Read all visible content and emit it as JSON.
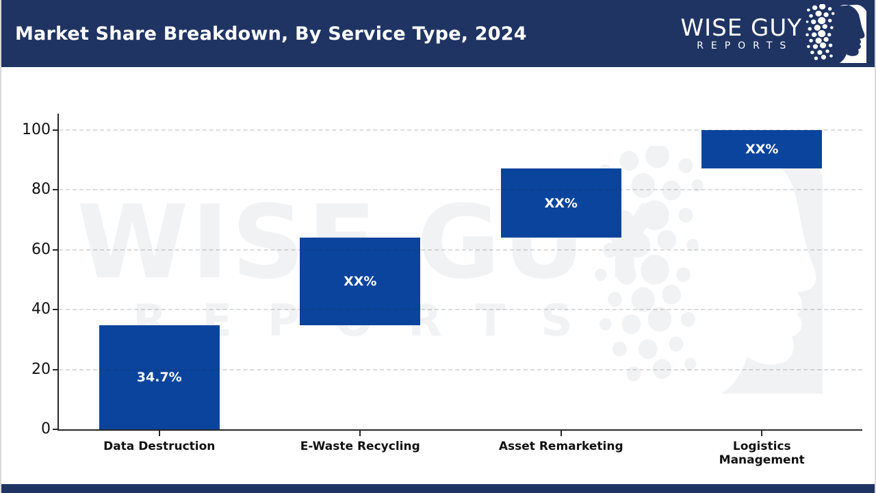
{
  "header": {
    "title": "Market Share Breakdown, By Service Type, 2024",
    "logo_line1": "WISE GUY",
    "logo_line2": "REPORTS",
    "bg_color": "#1f3463"
  },
  "watermark": {
    "line1": "WISE GUY",
    "line2": "REPORTS"
  },
  "footer": {
    "bg_color": "#1f3463"
  },
  "chart_data": {
    "type": "bar",
    "variant": "waterfall",
    "title": "Market Share Breakdown, By Service Type, 2024",
    "categories": [
      "Data Destruction",
      "E-Waste Recycling",
      "Asset Remarketing",
      "Logistics Management"
    ],
    "segments": [
      {
        "category": "Data Destruction",
        "start": 0,
        "end": 34.7,
        "label": "34.7%"
      },
      {
        "category": "E-Waste Recycling",
        "start": 34.7,
        "end": 64,
        "label": "XX%"
      },
      {
        "category": "Asset Remarketing",
        "start": 64,
        "end": 87,
        "label": "XX%"
      },
      {
        "category": "Logistics Management",
        "start": 87,
        "end": 100,
        "label": "XX%"
      }
    ],
    "xlabel": "",
    "ylabel": "",
    "ylim": [
      0,
      100
    ],
    "yticks": [
      0,
      20,
      40,
      60,
      80,
      100
    ],
    "grid": "horizontal-dashed",
    "legend": "none",
    "bar_color": "#0a449c",
    "bar_label_color": "#ffffff",
    "axis_color": "#262626",
    "grid_color": "#d9d9d9"
  }
}
